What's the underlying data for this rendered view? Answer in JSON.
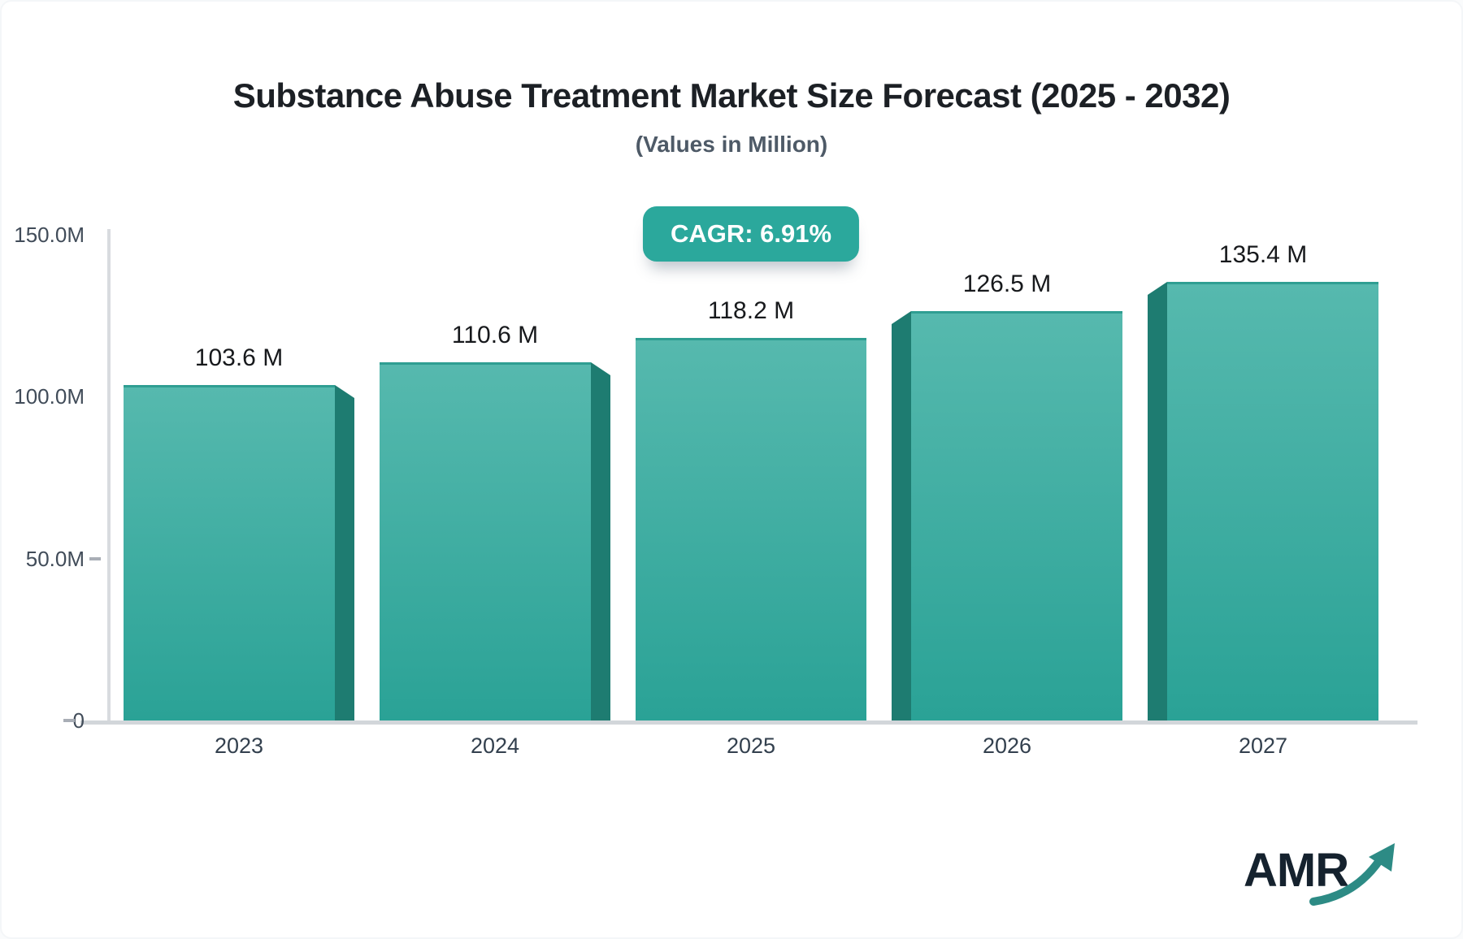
{
  "chart_data": {
    "type": "bar",
    "title": "Substance Abuse Treatment Market Size Forecast (2025 - 2032)",
    "subtitle": "(Values in Million)",
    "cagr_label": "CAGR: 6.91%",
    "cagr_value_percent": 6.91,
    "categories": [
      "2023",
      "2024",
      "2025",
      "2026",
      "2027"
    ],
    "values": [
      103.6,
      110.6,
      118.2,
      126.5,
      135.4
    ],
    "value_labels": [
      "103.6 M",
      "110.6 M",
      "118.2 M",
      "126.5 M",
      "135.4 M"
    ],
    "xlabel": "",
    "ylabel": "",
    "ylim": [
      0,
      150
    ],
    "yticks": [
      {
        "label": "150.0M",
        "value": 150,
        "dash": false
      },
      {
        "label": "100.0M",
        "value": 100,
        "dash": false
      },
      {
        "label": "50.0M",
        "value": 50,
        "dash": true
      },
      {
        "label": "0",
        "value": 0,
        "dash": true
      }
    ],
    "grid": false,
    "legend": false,
    "bar_3d_side": [
      "right",
      "right",
      "none",
      "left",
      "left"
    ],
    "colors": {
      "bar_top": "#56b9ae",
      "bar_bottom": "#2aa296",
      "bar_top_edge": "#2f9e92",
      "bar_side_panel": "#1e7c71",
      "badge_bg": "#2ba89c",
      "badge_text": "#ffffff",
      "axis_line": "#d8dbdf",
      "tick_text": "#414c59",
      "value_text": "#17191c",
      "title_text": "#1c2025",
      "subtitle_text": "#4e5a67",
      "logo_text": "#15222e",
      "logo_arrow": "#2d8b85"
    }
  },
  "logo": {
    "text": "AMR",
    "arrow_icon": "trend-arrow-icon"
  }
}
